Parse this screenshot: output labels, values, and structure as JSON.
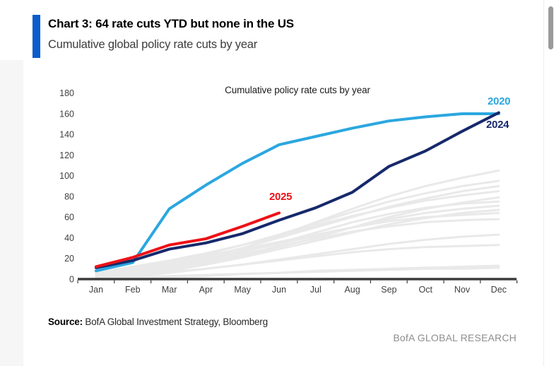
{
  "header": {
    "title": "Chart 3: 64 rate cuts YTD but none in the US",
    "subtitle": "Cumulative global policy rate cuts by year"
  },
  "chart_data": {
    "type": "line",
    "title": "Cumulative policy rate cuts by year",
    "categories": [
      "Jan",
      "Feb",
      "Mar",
      "Apr",
      "May",
      "Jun",
      "Jul",
      "Aug",
      "Sep",
      "Oct",
      "Nov",
      "Dec"
    ],
    "yticks": [
      0,
      20,
      40,
      60,
      80,
      100,
      120,
      140,
      160,
      180
    ],
    "ylim": [
      0,
      180
    ],
    "grid": false,
    "legend_position": "end-of-line-labels",
    "series": [
      {
        "name": "2020",
        "color": "#2ba7e0",
        "values": [
          8,
          16,
          68,
          91,
          112,
          130,
          138,
          146,
          153,
          157,
          160,
          160
        ]
      },
      {
        "name": "2024",
        "color": "#16296b",
        "values": [
          11,
          18,
          29,
          35,
          44,
          57,
          69,
          84,
          109,
          124,
          143,
          161
        ]
      },
      {
        "name": "2025",
        "color": "#ee1116",
        "values": [
          12,
          21,
          33,
          39,
          51,
          64
        ]
      }
    ],
    "background_series": [
      {
        "values": [
          2,
          6,
          12,
          20,
          30,
          42,
          55,
          68,
          80,
          90,
          98,
          105
        ]
      },
      {
        "values": [
          5,
          10,
          16,
          24,
          33,
          43,
          54,
          65,
          75,
          83,
          90,
          95
        ]
      },
      {
        "values": [
          3,
          8,
          15,
          22,
          30,
          40,
          50,
          60,
          70,
          78,
          85,
          90
        ]
      },
      {
        "values": [
          6,
          12,
          18,
          25,
          33,
          42,
          52,
          61,
          69,
          76,
          81,
          85
        ]
      },
      {
        "values": [
          2,
          5,
          10,
          16,
          23,
          31,
          40,
          50,
          60,
          68,
          74,
          79
        ]
      },
      {
        "values": [
          4,
          8,
          13,
          19,
          26,
          35,
          45,
          55,
          63,
          69,
          73,
          75
        ]
      },
      {
        "values": [
          4,
          9,
          14,
          20,
          27,
          34,
          42,
          50,
          58,
          64,
          68,
          71
        ]
      },
      {
        "values": [
          1,
          4,
          8,
          14,
          21,
          29,
          37,
          45,
          53,
          59,
          64,
          67
        ]
      },
      {
        "values": [
          5,
          11,
          17,
          23,
          29,
          36,
          43,
          50,
          56,
          60,
          62,
          64
        ]
      },
      {
        "values": [
          2,
          6,
          11,
          17,
          24,
          32,
          39,
          46,
          51,
          55,
          57,
          58
        ]
      },
      {
        "values": [
          1,
          3,
          6,
          10,
          14,
          19,
          24,
          29,
          34,
          38,
          41,
          43
        ]
      },
      {
        "values": [
          2,
          4,
          7,
          10,
          14,
          18,
          22,
          26,
          29,
          31,
          32,
          33
        ]
      },
      {
        "values": [
          0,
          1,
          2,
          3,
          5,
          6,
          8,
          9,
          10,
          11,
          12,
          13
        ]
      },
      {
        "values": [
          1,
          2,
          3,
          4,
          5,
          6,
          7,
          8,
          9,
          10,
          10,
          11
        ]
      }
    ]
  },
  "footer": {
    "source_label": "Source:",
    "source_text": " BofA Global Investment Strategy, Bloomberg",
    "brand": "BofA GLOBAL RESEARCH"
  },
  "colors": {
    "accent": "#0b5ccc",
    "title_text": "#000000",
    "subtitle_text": "#3c3c3c",
    "tick_text": "#3f3f3f",
    "axis": "#3c3c3c",
    "gray_line": "#e9e9e9",
    "brand_text": "#8e8e8e",
    "scrollbar_thumb": "#9a9a9a"
  }
}
